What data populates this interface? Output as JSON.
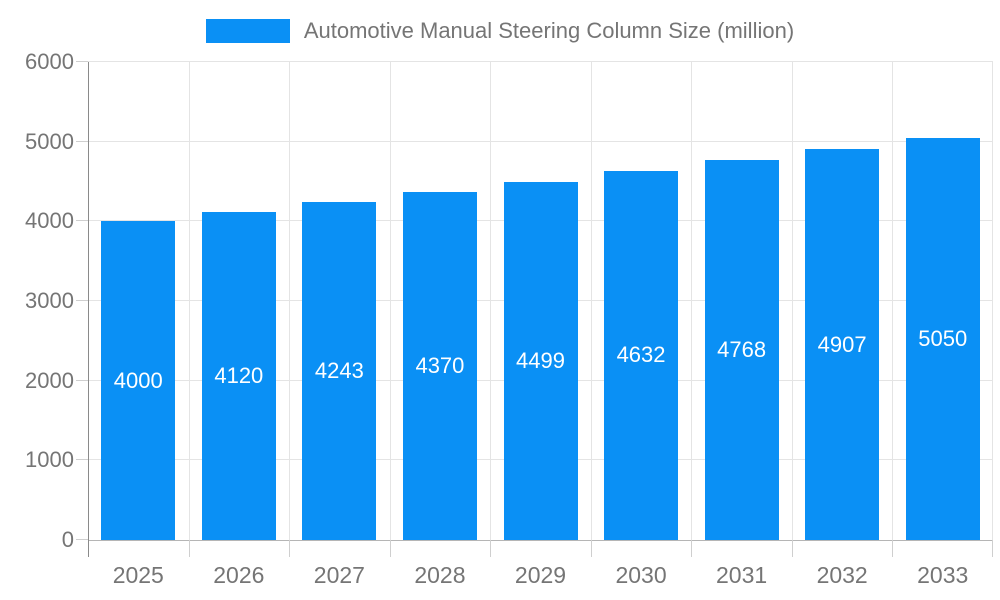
{
  "legend": {
    "label": "Automotive Manual Steering Column Size (million)"
  },
  "chart_data": {
    "type": "bar",
    "title": "Automotive Manual Steering Column Size (million)",
    "categories": [
      "2025",
      "2026",
      "2027",
      "2028",
      "2029",
      "2030",
      "2031",
      "2032",
      "2033"
    ],
    "values": [
      4000,
      4120,
      4243,
      4370,
      4499,
      4632,
      4768,
      4907,
      5050
    ],
    "data_labels": [
      "4000",
      "4120",
      "4243",
      "4370",
      "4499",
      "4632",
      "4768",
      "4907",
      "5050"
    ],
    "xlabel": "",
    "ylabel": "",
    "ylim": [
      0,
      6000
    ],
    "ytick_step": 1000,
    "ytick_labels": [
      "0",
      "1000",
      "2000",
      "3000",
      "4000",
      "5000",
      "6000"
    ],
    "grid": true,
    "legend_position": "top-center"
  },
  "colors": {
    "bar": "#0A90F5",
    "grid": "#E4E4E4",
    "axis_y": "#8A8A8A",
    "axis_x": "#B5B5B5",
    "tick": "#CFCFCF",
    "text": "#757575",
    "bar_label": "#FFFFFF",
    "background": "#FFFFFF"
  }
}
